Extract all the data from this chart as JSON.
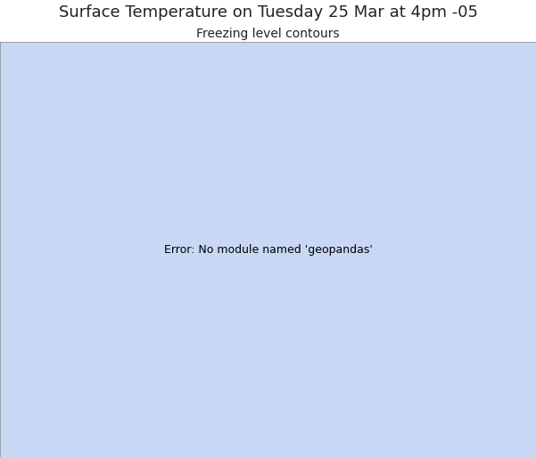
{
  "title": "Surface Temperature on Tuesday 25 Mar at 4pm -05",
  "subtitle": "Freezing level contours",
  "title_fontsize": 13,
  "subtitle_fontsize": 10,
  "title_color": "#222222",
  "background_color": "#ffffff",
  "map_background": "#c8d8f4",
  "lon_min": -92,
  "lon_max": -57,
  "lat_min": -6,
  "lat_max": 18,
  "figsize": [
    6.01,
    5.13
  ],
  "dpi": 100,
  "contour_color": "#cc0000",
  "border_color": "#111111",
  "ocean_color": "#c8d8f4",
  "land_base_color": "#cc6600"
}
